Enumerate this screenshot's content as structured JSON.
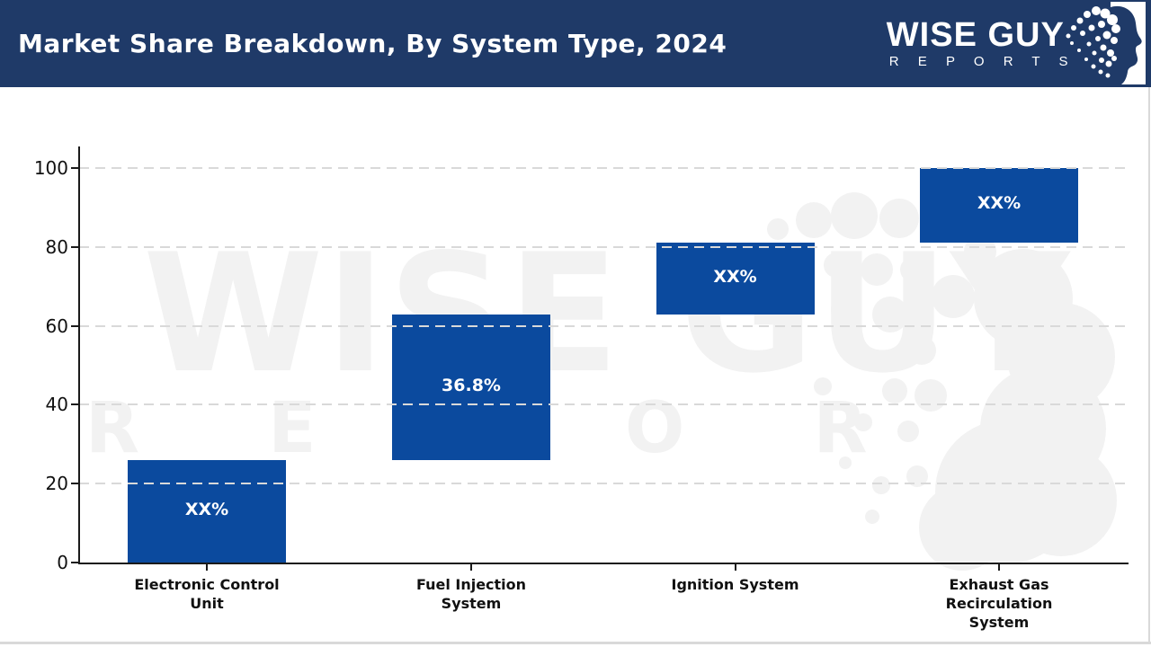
{
  "header": {
    "title": "Market Share Breakdown, By System Type, 2024",
    "logo": {
      "name": "WISE GUY",
      "subtitle": "R E P O R T S"
    }
  },
  "watermark": {
    "name": "WISE GUY",
    "subtitle": "R E P O R T S"
  },
  "colors": {
    "header_bg": "#1f3a68",
    "bar": "#0b4a9e",
    "bar_label": "#ffffff",
    "grid": "#d9d9d9",
    "axis": "#1a1a1a",
    "text": "#111111",
    "watermark": "#f2f2f2"
  },
  "chart_data": {
    "type": "bar",
    "variant": "floating-waterfall",
    "title": "Market Share Breakdown, By System Type, 2024",
    "xlabel": "",
    "ylabel": "",
    "ylim": [
      0,
      105
    ],
    "yticks": [
      0,
      20,
      40,
      60,
      80,
      100
    ],
    "grid": "horizontal-dashed",
    "legend": "none",
    "bar_color": "#0b4a9e",
    "categories": [
      "Electronic Control|Unit",
      "Fuel Injection|System",
      "Ignition System",
      "Exhaust Gas|Recirculation|System"
    ],
    "segments": [
      {
        "category": "Electronic Control Unit",
        "start": 0,
        "end": 26,
        "height": 26,
        "label": "XX%"
      },
      {
        "category": "Fuel Injection System",
        "start": 26,
        "end": 62.8,
        "height": 36.8,
        "label": "36.8%"
      },
      {
        "category": "Ignition System",
        "start": 62.8,
        "end": 81.2,
        "height": 18.4,
        "label": "XX%"
      },
      {
        "category": "Exhaust Gas Recirculation System",
        "start": 81.2,
        "end": 100,
        "height": 18.8,
        "label": "XX%"
      }
    ]
  }
}
